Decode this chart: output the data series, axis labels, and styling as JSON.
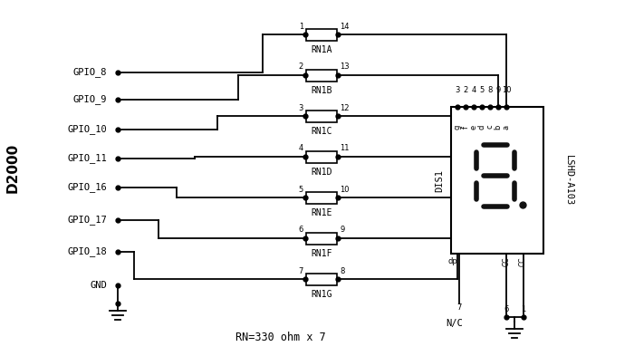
{
  "bg_color": "#ffffff",
  "line_color": "#000000",
  "fig_width": 7.0,
  "fig_height": 3.93,
  "dpi": 100,
  "gpio_names": [
    "GPIO_8",
    "GPIO_9",
    "GPIO_10",
    "GPIO_11",
    "GPIO_16",
    "GPIO_17",
    "GPIO_18",
    "GND"
  ],
  "resistor_names": [
    "RN1A",
    "RN1B",
    "RN1C",
    "RN1D",
    "RN1E",
    "RN1F",
    "RN1G"
  ],
  "res_left_pins": [
    "1",
    "2",
    "3",
    "4",
    "5",
    "6",
    "7"
  ],
  "res_right_pins": [
    "14",
    "13",
    "12",
    "11",
    "10",
    "9",
    "8"
  ],
  "dis_top_pins": [
    "3",
    "2",
    "4",
    "5",
    "8",
    "9",
    "10"
  ],
  "dis_seg_letters": [
    "g",
    "f",
    "e",
    "d",
    "c",
    "b",
    "a"
  ],
  "d2000_label": "D2000",
  "dis_label": "DIS1",
  "ic_label": "LSHD-A103",
  "bottom_text": "RN=330 ohm x 7",
  "seg_color": "#111111"
}
